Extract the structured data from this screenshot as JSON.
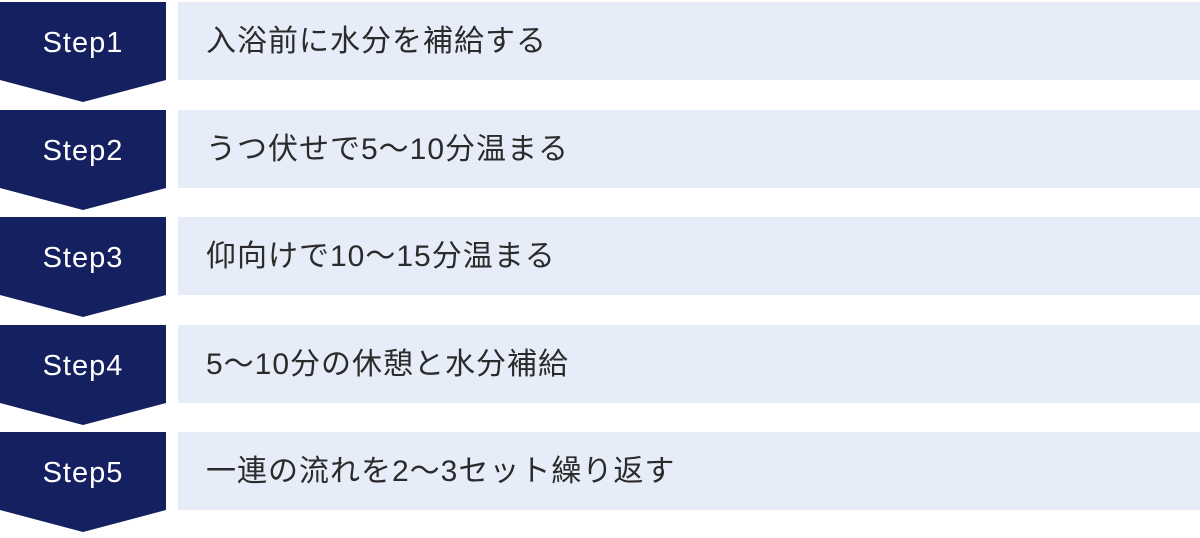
{
  "steps": [
    {
      "step_label": "Step1",
      "description": "入浴前に水分を補給する"
    },
    {
      "step_label": "Step2",
      "description": "うつ伏せで5〜10分温まる"
    },
    {
      "step_label": "Step3",
      "description": "仰向けで10〜15分温まる"
    },
    {
      "step_label": "Step4",
      "description": "5〜10分の休憩と水分補給"
    },
    {
      "step_label": "Step5",
      "description": "一連の流れを2〜3セット繰り返す"
    }
  ],
  "colors": {
    "badge_color": "#152060",
    "badge_text_color": "#ffffff",
    "box_color": "#e6ecf8",
    "description_text_color": "#2b2b2b"
  }
}
